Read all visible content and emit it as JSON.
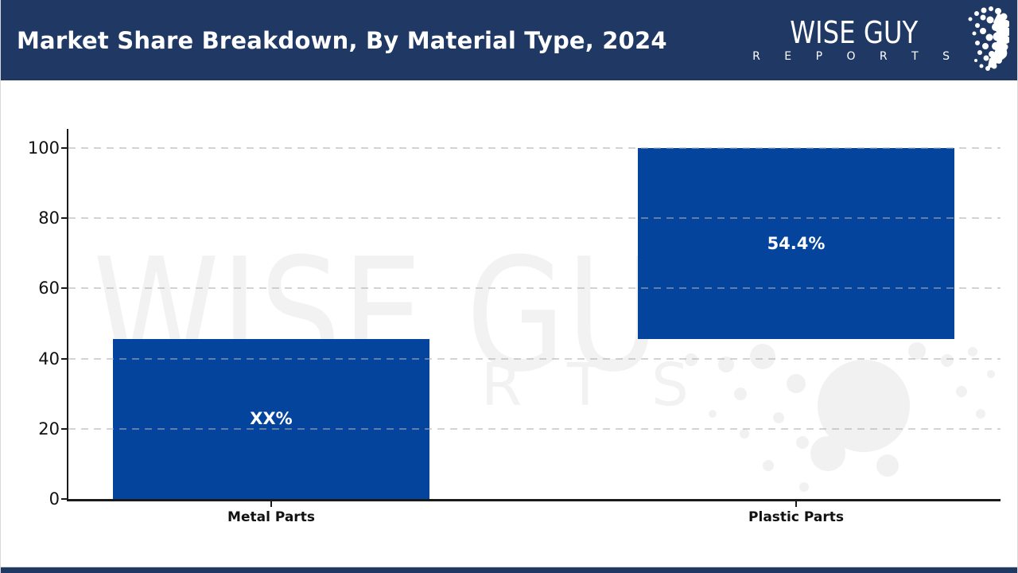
{
  "header": {
    "title": "Market Share Breakdown, By Material Type, 2024",
    "logo": {
      "line1": "WISE GUY",
      "line2": "R E P O R T S"
    }
  },
  "watermark": {
    "main": "WISE GU",
    "tail": [
      "R",
      "T",
      "S"
    ]
  },
  "chart_data": {
    "type": "bar",
    "title": "Market Share Breakdown, By Material Type, 2024",
    "categories": [
      "Metal Parts",
      "Plastic Parts"
    ],
    "values": [
      45.6,
      54.4
    ],
    "segments": [
      {
        "from": 0,
        "to": 45.6
      },
      {
        "from": 45.6,
        "to": 100
      }
    ],
    "bar_labels": [
      "XX%",
      "54.4%"
    ],
    "yticks": [
      0,
      20,
      40,
      60,
      80,
      100
    ],
    "ylim": [
      0,
      100
    ],
    "grid": "dashed-horizontal",
    "legend": "none",
    "bar_color": "#04449C",
    "label_color": "#FFFFFF",
    "axis_color": "#1A1A1A"
  },
  "colors": {
    "header_bg": "#1F3864",
    "footer_bg": "#1F3864",
    "watermark": "#F2F2F2"
  }
}
